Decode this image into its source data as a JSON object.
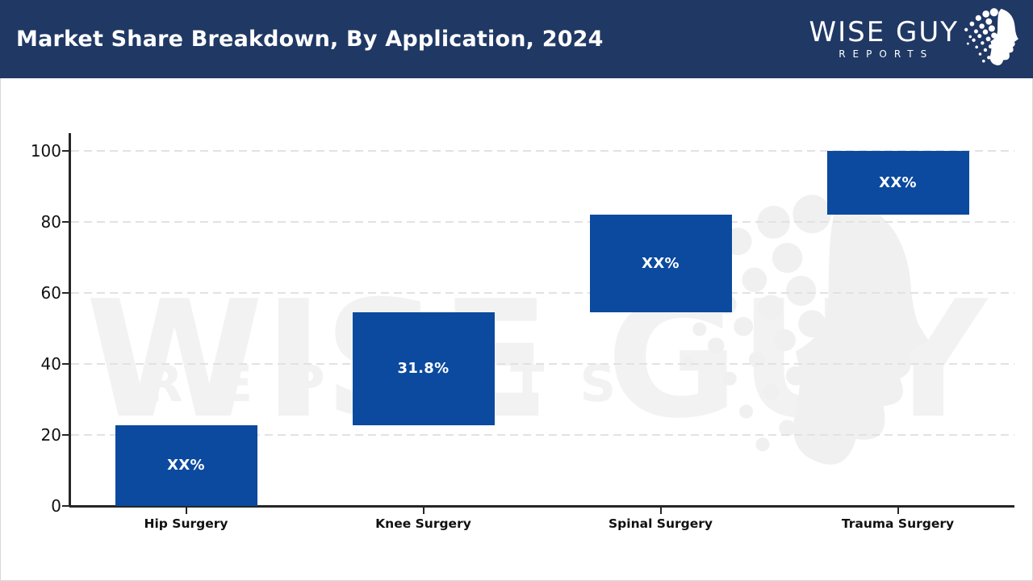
{
  "header": {
    "title": "Market Share Breakdown, By Application, 2024",
    "logo": {
      "line1": "WISE GUY",
      "line2": "REPORTS"
    }
  },
  "watermark": {
    "line1": "WISE GUY",
    "line2": "REPORTS"
  },
  "colors": {
    "header_bg": "#203864",
    "bar": "#0b4a9e",
    "bar_label": "#ffffff",
    "axis": "#262626",
    "grid_line": "#e2e2e2",
    "watermark": "#f2f2f2",
    "card_border": "#d8d8d8",
    "title_text": "#ffffff",
    "tick_text": "#111111"
  },
  "chart_data": {
    "type": "bar",
    "subtype": "waterfall",
    "title": "Market Share Breakdown, By Application, 2024",
    "categories": [
      "Hip Surgery",
      "Knee Surgery",
      "Spinal Surgery",
      "Trauma Surgery"
    ],
    "segments": [
      {
        "category": "Hip Surgery",
        "start": 0,
        "end": 22.8,
        "value_label": "XX%"
      },
      {
        "category": "Knee Surgery",
        "start": 22.8,
        "end": 54.6,
        "value_label": "31.8%"
      },
      {
        "category": "Spinal Surgery",
        "start": 54.6,
        "end": 82.0,
        "value_label": "XX%"
      },
      {
        "category": "Trauma Surgery",
        "start": 82.0,
        "end": 100,
        "value_label": "XX%"
      }
    ],
    "y_ticks": [
      0,
      20,
      40,
      60,
      80,
      100
    ],
    "ylim": [
      0,
      105
    ],
    "xlabel": "",
    "ylabel": "",
    "grid": "horizontal-dashed",
    "legend": "none"
  }
}
